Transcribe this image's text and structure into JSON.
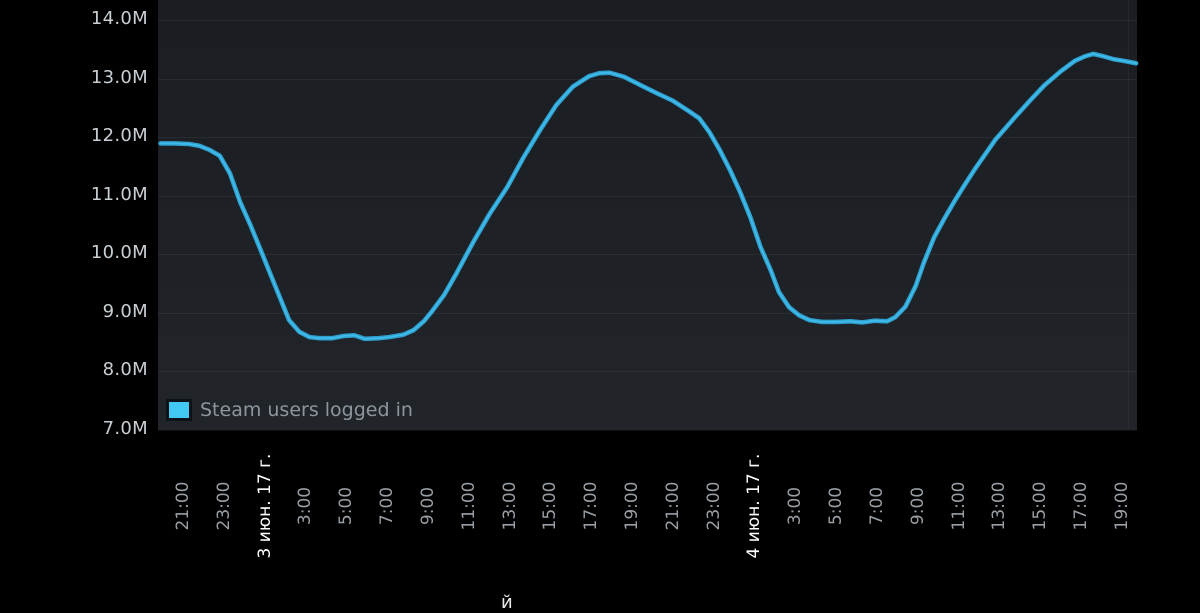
{
  "legend": {
    "label": "Steam users logged in",
    "swatch_color": "#41c9f4"
  },
  "clipped_text": "й",
  "colors": {
    "page_bg": "#000000",
    "plot_bg_top": "#1a1d21",
    "plot_bg_bottom": "#212529",
    "line": "#3fbcea",
    "line_edge": "#2f9fcf",
    "y_label": "#c8cfd4",
    "x_time_label": "#999fa6",
    "x_date_label": "#ffffff"
  },
  "chart_data": {
    "type": "line",
    "title": "",
    "xlabel": "",
    "ylabel": "",
    "legend_position": "bottom-left",
    "grid": "horizontal",
    "y_ticks": [
      "14.0M",
      "13.0M",
      "12.0M",
      "11.0M",
      "10.0M",
      "9.0M",
      "8.0M",
      "7.0M"
    ],
    "y_tick_values": [
      14,
      13,
      12,
      11,
      10,
      9,
      8,
      7
    ],
    "ylim": [
      7,
      14.35
    ],
    "x_unit": "hours from first tick (21:00, 2 Jun 2017)",
    "x_tick_interval_hours": 2,
    "x_ticks": [
      {
        "label": "21:00",
        "type": "time"
      },
      {
        "label": "23:00",
        "type": "time"
      },
      {
        "label": "3 июн. 17 г.",
        "type": "date"
      },
      {
        "label": "3:00",
        "type": "time"
      },
      {
        "label": "5:00",
        "type": "time"
      },
      {
        "label": "7:00",
        "type": "time"
      },
      {
        "label": "9:00",
        "type": "time"
      },
      {
        "label": "11:00",
        "type": "time"
      },
      {
        "label": "13:00",
        "type": "time"
      },
      {
        "label": "15:00",
        "type": "time"
      },
      {
        "label": "17:00",
        "type": "time"
      },
      {
        "label": "19:00",
        "type": "time"
      },
      {
        "label": "21:00",
        "type": "time"
      },
      {
        "label": "23:00",
        "type": "time"
      },
      {
        "label": "4 июн. 17 г.",
        "type": "date"
      },
      {
        "label": "3:00",
        "type": "time"
      },
      {
        "label": "5:00",
        "type": "time"
      },
      {
        "label": "7:00",
        "type": "time"
      },
      {
        "label": "9:00",
        "type": "time"
      },
      {
        "label": "11:00",
        "type": "time"
      },
      {
        "label": "13:00",
        "type": "time"
      },
      {
        "label": "15:00",
        "type": "time"
      },
      {
        "label": "17:00",
        "type": "time"
      },
      {
        "label": "19:00",
        "type": "time"
      }
    ],
    "series": [
      {
        "name": "Steam users logged in",
        "unit": "millions of users",
        "points": [
          [
            -1.1,
            11.89
          ],
          [
            -0.4,
            11.89
          ],
          [
            0.3,
            11.88
          ],
          [
            0.8,
            11.85
          ],
          [
            1.3,
            11.78
          ],
          [
            1.8,
            11.68
          ],
          [
            2.3,
            11.38
          ],
          [
            2.8,
            10.89
          ],
          [
            3.3,
            10.5
          ],
          [
            3.8,
            10.07
          ],
          [
            4.3,
            9.64
          ],
          [
            4.8,
            9.21
          ],
          [
            5.2,
            8.87
          ],
          [
            5.7,
            8.67
          ],
          [
            6.2,
            8.58
          ],
          [
            6.7,
            8.56
          ],
          [
            7.3,
            8.56
          ],
          [
            7.9,
            8.6
          ],
          [
            8.4,
            8.61
          ],
          [
            8.9,
            8.55
          ],
          [
            9.6,
            8.56
          ],
          [
            10.1,
            8.58
          ],
          [
            10.8,
            8.62
          ],
          [
            11.3,
            8.7
          ],
          [
            11.8,
            8.85
          ],
          [
            12.2,
            9.02
          ],
          [
            12.8,
            9.3
          ],
          [
            13.4,
            9.67
          ],
          [
            14.2,
            10.19
          ],
          [
            15.0,
            10.67
          ],
          [
            15.9,
            11.15
          ],
          [
            16.7,
            11.66
          ],
          [
            17.5,
            12.12
          ],
          [
            18.3,
            12.55
          ],
          [
            19.1,
            12.86
          ],
          [
            19.9,
            13.04
          ],
          [
            20.4,
            13.09
          ],
          [
            20.9,
            13.1
          ],
          [
            21.6,
            13.03
          ],
          [
            22.4,
            12.89
          ],
          [
            23.2,
            12.75
          ],
          [
            24.0,
            12.62
          ],
          [
            24.8,
            12.44
          ],
          [
            25.3,
            12.32
          ],
          [
            25.8,
            12.08
          ],
          [
            26.3,
            11.78
          ],
          [
            26.8,
            11.44
          ],
          [
            27.3,
            11.06
          ],
          [
            27.8,
            10.63
          ],
          [
            28.3,
            10.12
          ],
          [
            28.8,
            9.72
          ],
          [
            29.2,
            9.35
          ],
          [
            29.7,
            9.09
          ],
          [
            30.2,
            8.95
          ],
          [
            30.7,
            8.87
          ],
          [
            31.3,
            8.84
          ],
          [
            32.0,
            8.84
          ],
          [
            32.7,
            8.85
          ],
          [
            33.3,
            8.83
          ],
          [
            33.9,
            8.86
          ],
          [
            34.5,
            8.85
          ],
          [
            34.9,
            8.92
          ],
          [
            35.4,
            9.1
          ],
          [
            35.9,
            9.45
          ],
          [
            36.3,
            9.85
          ],
          [
            36.8,
            10.28
          ],
          [
            37.3,
            10.6
          ],
          [
            37.8,
            10.9
          ],
          [
            38.3,
            11.18
          ],
          [
            38.8,
            11.45
          ],
          [
            39.3,
            11.7
          ],
          [
            39.8,
            11.95
          ],
          [
            40.3,
            12.15
          ],
          [
            40.8,
            12.35
          ],
          [
            41.5,
            12.62
          ],
          [
            42.2,
            12.88
          ],
          [
            43.0,
            13.12
          ],
          [
            43.7,
            13.3
          ],
          [
            44.2,
            13.38
          ],
          [
            44.6,
            13.42
          ],
          [
            45.1,
            13.38
          ],
          [
            45.6,
            13.33
          ],
          [
            46.1,
            13.3
          ],
          [
            46.7,
            13.26
          ]
        ]
      }
    ]
  }
}
